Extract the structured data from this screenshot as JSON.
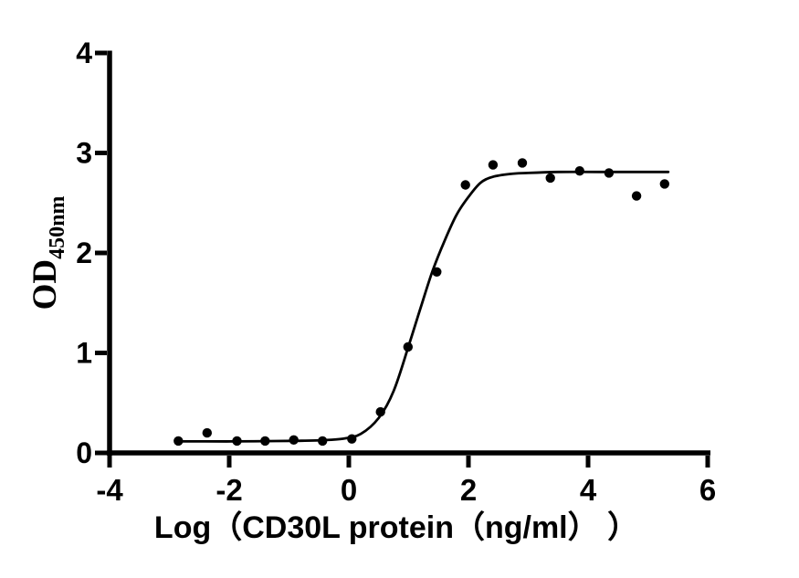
{
  "figure": {
    "background_color": "#ffffff",
    "ink_color": "#000000",
    "description": "ELISA dose-response binding curve"
  },
  "chart_data": {
    "type": "scatter",
    "title": "",
    "xlabel": "Log（CD30L protein（ng/ml） ）",
    "ylabel_main": "OD",
    "ylabel_sub": "450nm",
    "xlim": [
      -4,
      6
    ],
    "ylim": [
      0,
      4
    ],
    "x_ticks": [
      -4,
      -2,
      0,
      2,
      4,
      6
    ],
    "y_ticks": [
      0,
      1,
      2,
      3,
      4
    ],
    "grid": false,
    "legend_position": "none",
    "marker_color": "#000000",
    "curve_color": "#000000",
    "series": [
      {
        "name": "measured-points",
        "type": "scatter",
        "points": [
          {
            "x": -2.85,
            "y": 0.12
          },
          {
            "x": -2.37,
            "y": 0.2
          },
          {
            "x": -1.87,
            "y": 0.12
          },
          {
            "x": -1.4,
            "y": 0.12
          },
          {
            "x": -0.92,
            "y": 0.13
          },
          {
            "x": -0.44,
            "y": 0.12
          },
          {
            "x": 0.05,
            "y": 0.14
          },
          {
            "x": 0.53,
            "y": 0.41
          },
          {
            "x": 0.99,
            "y": 1.06
          },
          {
            "x": 1.47,
            "y": 1.81
          },
          {
            "x": 1.95,
            "y": 2.68
          },
          {
            "x": 2.41,
            "y": 2.88
          },
          {
            "x": 2.9,
            "y": 2.9
          },
          {
            "x": 3.37,
            "y": 2.75
          },
          {
            "x": 3.86,
            "y": 2.82
          },
          {
            "x": 4.35,
            "y": 2.8
          },
          {
            "x": 4.81,
            "y": 2.57
          },
          {
            "x": 5.28,
            "y": 2.69
          }
        ]
      },
      {
        "name": "sigmoid-fit-curve",
        "type": "line",
        "points": [
          {
            "x": -2.85,
            "y": 0.115
          },
          {
            "x": -2.4,
            "y": 0.115
          },
          {
            "x": -1.9,
            "y": 0.115
          },
          {
            "x": -1.4,
            "y": 0.118
          },
          {
            "x": -0.9,
            "y": 0.121
          },
          {
            "x": -0.45,
            "y": 0.127
          },
          {
            "x": -0.1,
            "y": 0.142
          },
          {
            "x": 0.2,
            "y": 0.19
          },
          {
            "x": 0.5,
            "y": 0.35
          },
          {
            "x": 0.75,
            "y": 0.62
          },
          {
            "x": 1.0,
            "y": 1.07
          },
          {
            "x": 1.2,
            "y": 1.45
          },
          {
            "x": 1.4,
            "y": 1.82
          },
          {
            "x": 1.6,
            "y": 2.12
          },
          {
            "x": 1.8,
            "y": 2.38
          },
          {
            "x": 2.0,
            "y": 2.56
          },
          {
            "x": 2.2,
            "y": 2.7
          },
          {
            "x": 2.4,
            "y": 2.76
          },
          {
            "x": 2.7,
            "y": 2.79
          },
          {
            "x": 3.0,
            "y": 2.8
          },
          {
            "x": 3.5,
            "y": 2.81
          },
          {
            "x": 4.2,
            "y": 2.81
          },
          {
            "x": 5.34,
            "y": 2.81
          }
        ]
      }
    ]
  }
}
